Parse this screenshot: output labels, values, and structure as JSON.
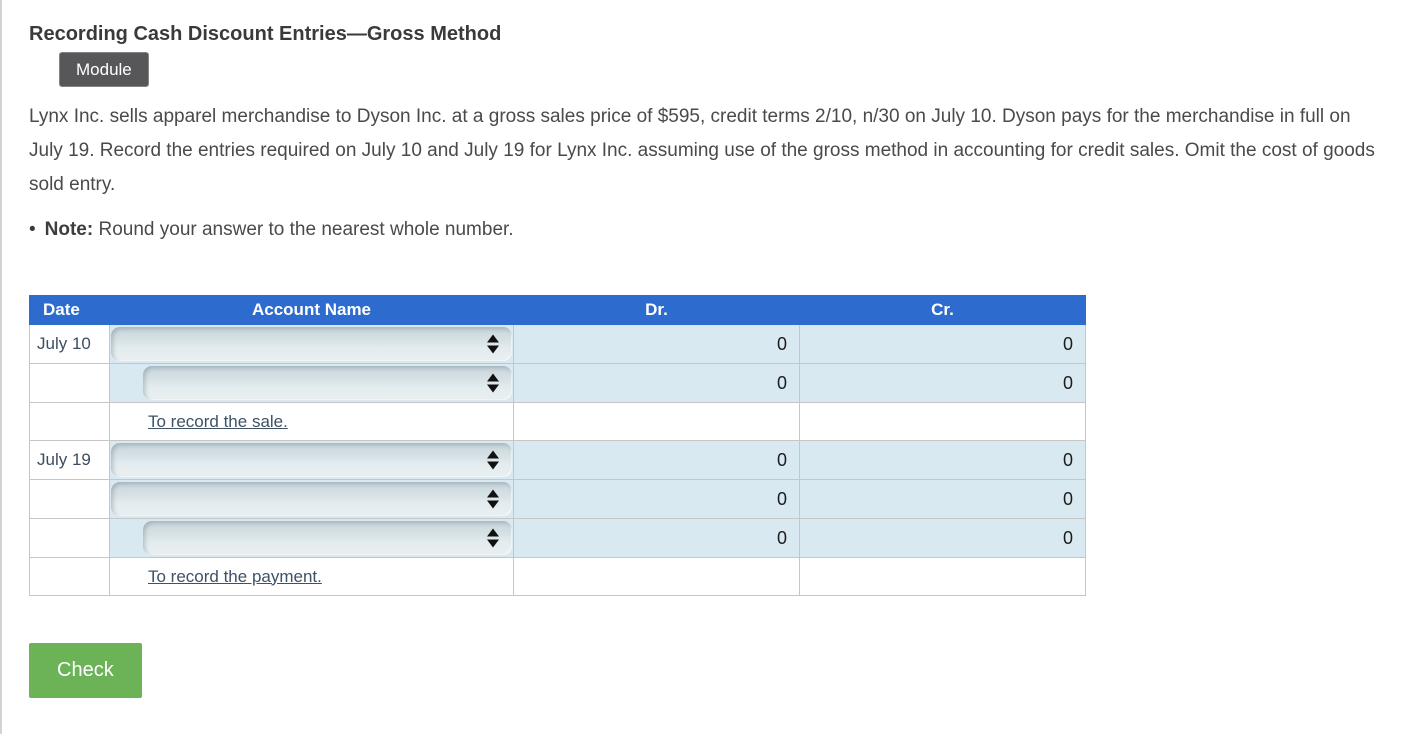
{
  "page": {
    "title": "Recording Cash Discount Entries—Gross Method",
    "badge_label": "Module",
    "problem_text": "Lynx Inc. sells apparel merchandise to Dyson Inc. at a gross sales price of $595, credit terms 2/10, n/30 on July 10. Dyson pays for the merchandise in full on July 19. Record the entries required on July 10 and July 19 for Lynx Inc. assuming use of the gross method in accounting for credit sales. Omit the cost of goods sold entry.",
    "note_bullet": "•",
    "note_label": "Note: ",
    "note_text": "Round your answer to the nearest whole number."
  },
  "table": {
    "headers": {
      "date": "Date",
      "account": "Account Name",
      "dr": "Dr.",
      "cr": "Cr."
    },
    "rows": [
      {
        "date": "July 10",
        "kind": "select",
        "indent": false,
        "dr": "0",
        "cr": "0"
      },
      {
        "date": "",
        "kind": "select",
        "indent": true,
        "dr": "0",
        "cr": "0"
      },
      {
        "date": "",
        "kind": "memo",
        "memo": "To record the sale."
      },
      {
        "date": "July 19",
        "kind": "select",
        "indent": false,
        "dr": "0",
        "cr": "0"
      },
      {
        "date": "",
        "kind": "select",
        "indent": false,
        "dr": "0",
        "cr": "0"
      },
      {
        "date": "",
        "kind": "select",
        "indent": true,
        "dr": "0",
        "cr": "0"
      },
      {
        "date": "",
        "kind": "memo",
        "memo": "To record the payment."
      }
    ]
  },
  "actions": {
    "check_label": "Check"
  },
  "colors": {
    "header_blue": "#2d6cce",
    "cell_light_blue": "#d8e9f1",
    "check_green": "#6cb357",
    "badge_gray": "#57575a",
    "link_slate": "#3d5266"
  }
}
